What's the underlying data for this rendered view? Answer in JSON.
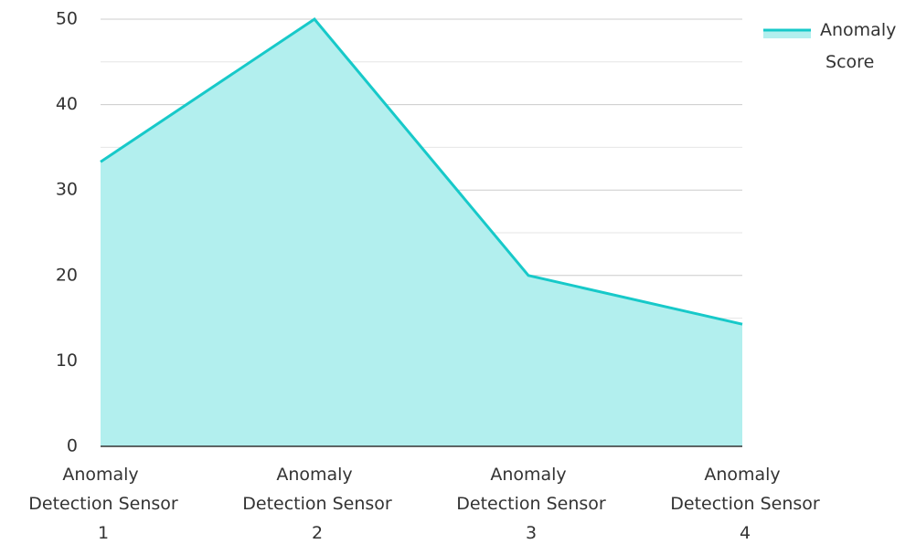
{
  "chart_data": {
    "type": "area",
    "categories": [
      "Anomaly Detection Sensor 1",
      "Anomaly Detection Sensor 2",
      "Anomaly Detection Sensor 3",
      "Anomaly Detection Sensor 4"
    ],
    "series": [
      {
        "name": "Anomaly Score",
        "color": "#17c9c9",
        "fill": "#b2efee",
        "values": [
          33.3,
          50,
          20,
          14.3
        ]
      }
    ],
    "ylim": [
      0,
      50
    ],
    "yticks": [
      0,
      10,
      20,
      30,
      40,
      50
    ],
    "minor_yticks": [
      5,
      15,
      25,
      35,
      45
    ],
    "grid": true,
    "legend": "top-right"
  }
}
